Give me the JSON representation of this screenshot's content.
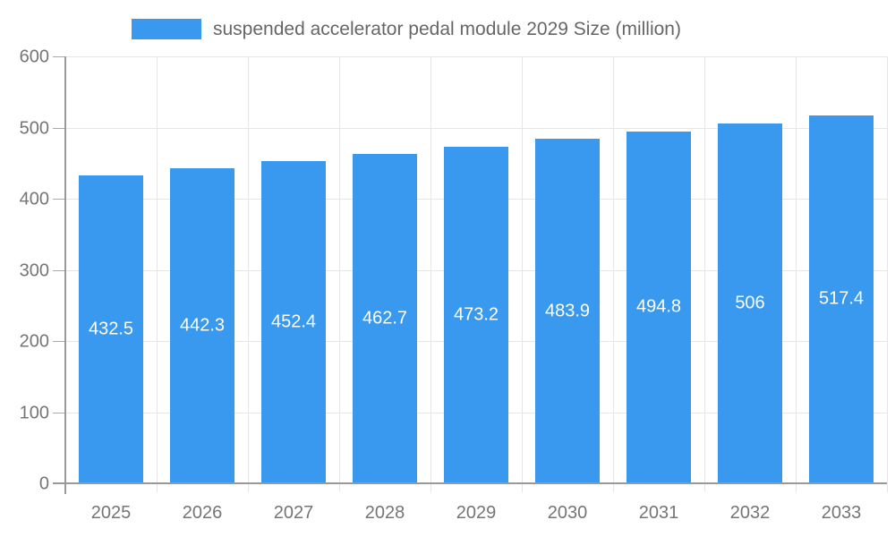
{
  "legend": {
    "label": "suspended accelerator pedal module 2029 Size (million)"
  },
  "chart_data": {
    "type": "bar",
    "title": "",
    "xlabel": "",
    "ylabel": "",
    "categories": [
      "2025",
      "2026",
      "2027",
      "2028",
      "2029",
      "2030",
      "2031",
      "2032",
      "2033"
    ],
    "values": [
      432.5,
      442.3,
      452.4,
      462.7,
      473.2,
      483.9,
      494.8,
      506,
      517.4
    ],
    "bar_labels": [
      "432.5",
      "442.3",
      "452.4",
      "462.7",
      "473.2",
      "483.9",
      "494.8",
      "506",
      "517.4"
    ],
    "ylim": [
      0,
      600
    ],
    "yticks": [
      0,
      100,
      200,
      300,
      400,
      500,
      600
    ],
    "grid": true,
    "legend_position": "top",
    "colors": {
      "bar": "#3899EE",
      "bar_label_text": "#FFFFFF",
      "grid": "#E6E6E6",
      "axis": "#999999",
      "tick_text": "#757575",
      "legend_text": "#666666",
      "background": "#FFFFFF"
    }
  }
}
